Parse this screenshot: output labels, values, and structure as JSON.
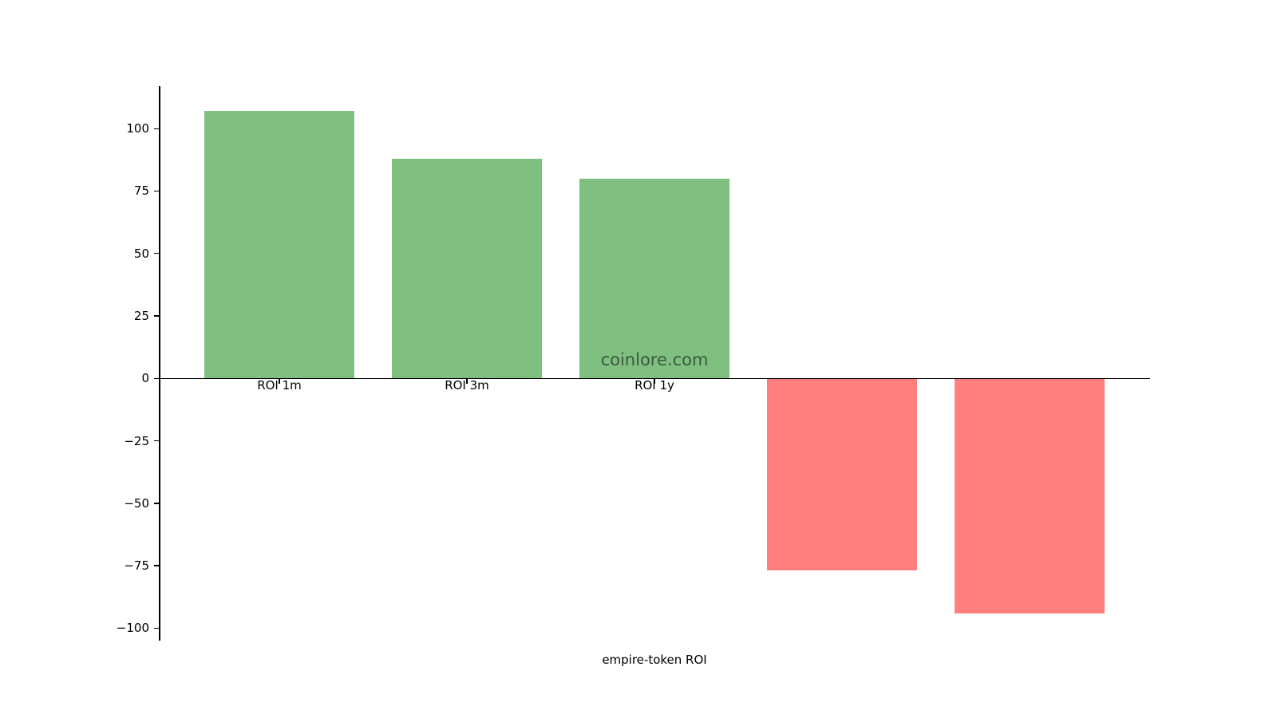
{
  "page": {
    "background_color": "#ffffff",
    "axis_color": "#000000"
  },
  "watermark": {
    "text": "coinlore.com",
    "color": "#3c5840"
  },
  "chart_data": {
    "type": "bar",
    "title": "",
    "xlabel": "empire-token ROI",
    "ylabel": "",
    "categories": [
      "ROI 1m",
      "ROI 3m",
      "ROI 1y",
      "",
      ""
    ],
    "values": [
      107,
      88,
      80,
      -77,
      -94
    ],
    "positive_color": "#7fbf7f",
    "negative_color": "#ff7f7f",
    "ylim": [
      -105,
      117
    ],
    "yticks": [
      -100,
      -75,
      -50,
      -25,
      0,
      25,
      50,
      75,
      100
    ],
    "ytick_labels": [
      "−100",
      "−75",
      "−50",
      "−25",
      "0",
      "25",
      "50",
      "75",
      "100"
    ],
    "grid": false,
    "legend": null
  }
}
